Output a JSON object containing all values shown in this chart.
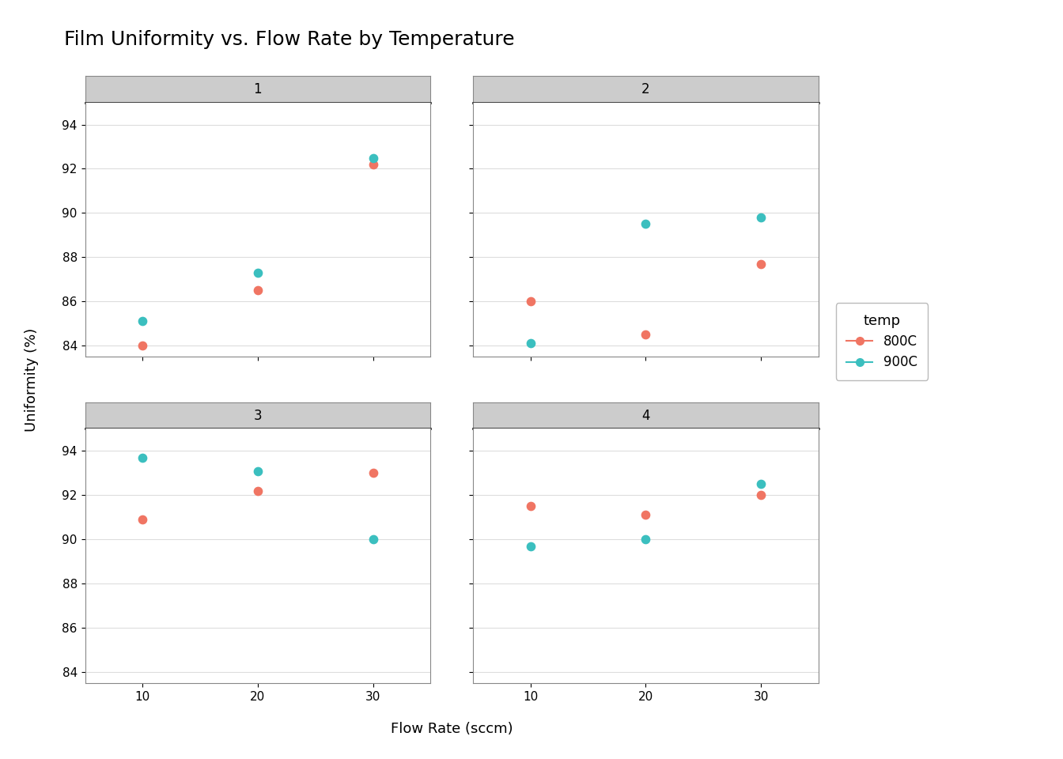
{
  "title": "Film Uniformity vs. Flow Rate by Temperature",
  "xlabel": "Flow Rate (sccm)",
  "ylabel": "Uniformity (%)",
  "legend_title": "temp",
  "legend_labels": [
    "800C",
    "900C"
  ],
  "colors": {
    "800C": "#F07563",
    "900C": "#3BBFBF"
  },
  "flow_rates": [
    10,
    20,
    30
  ],
  "panels": [
    {
      "label": "1",
      "data_800C": [
        84.0,
        86.5,
        92.2
      ],
      "data_900C": [
        85.1,
        87.3,
        92.5
      ]
    },
    {
      "label": "2",
      "data_800C": [
        86.0,
        84.5,
        87.7
      ],
      "data_900C": [
        84.1,
        89.5,
        89.8
      ]
    },
    {
      "label": "3",
      "data_800C": [
        90.9,
        92.2,
        93.0
      ],
      "data_900C": [
        93.7,
        93.1,
        90.0
      ]
    },
    {
      "label": "4",
      "data_800C": [
        91.5,
        91.1,
        92.0
      ],
      "data_900C": [
        89.7,
        90.0,
        92.5
      ]
    }
  ],
  "ylim": [
    83.5,
    95.0
  ],
  "yticks": [
    84,
    86,
    88,
    90,
    92,
    94
  ],
  "xticks": [
    10,
    20,
    30
  ],
  "background_color": "#ffffff",
  "panel_header_color": "#cccccc",
  "panel_header_border_color": "#555555",
  "grid_color": "#dddddd",
  "dot_size": 55,
  "title_fontsize": 18,
  "axis_label_fontsize": 13,
  "tick_fontsize": 11,
  "panel_label_fontsize": 12
}
